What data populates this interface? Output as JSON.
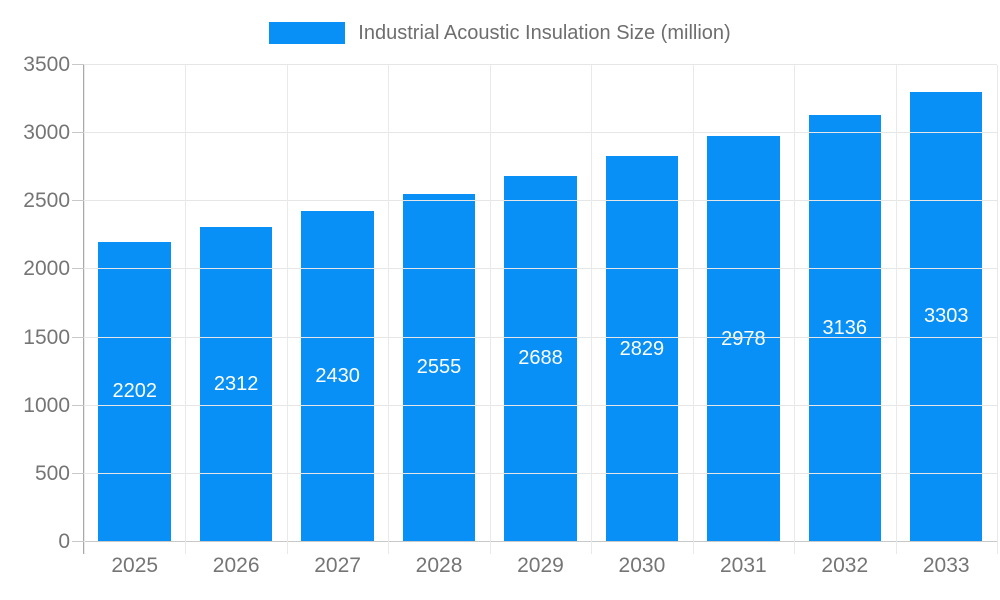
{
  "legend": {
    "label": "Industrial Acoustic Insulation Size (million)"
  },
  "colors": {
    "bar": "#0890f6",
    "axis_text": "#757575",
    "legend_text": "#6e6e6e",
    "gridline": "#e6e6e6",
    "axis_line": "#a9a9a9",
    "value_text": "#ffffff"
  },
  "chart_data": {
    "type": "bar",
    "title": "",
    "legend_entries": [
      "Industrial Acoustic Insulation Size (million)"
    ],
    "legend_position": "top-center",
    "categories": [
      "2025",
      "2026",
      "2027",
      "2028",
      "2029",
      "2030",
      "2031",
      "2032",
      "2033"
    ],
    "values": [
      2202,
      2312,
      2430,
      2555,
      2688,
      2829,
      2978,
      3136,
      3303
    ],
    "xlabel": "",
    "ylabel": "",
    "ylim": [
      0,
      3500
    ],
    "yticks": [
      0,
      500,
      1000,
      1500,
      2000,
      2500,
      3000,
      3500
    ],
    "grid": "horizontal and vertical light gray",
    "value_labels": "inside bars, vertically centered, white"
  }
}
